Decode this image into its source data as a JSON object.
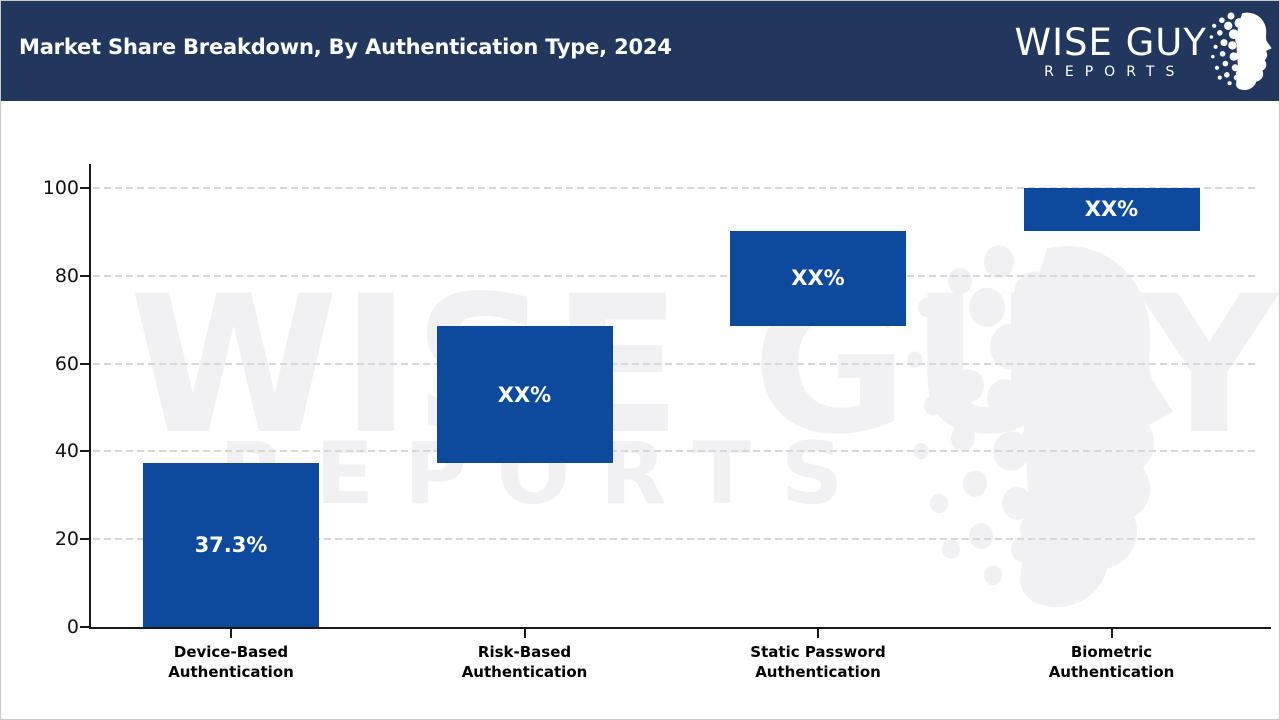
{
  "header": {
    "title": "Market Share Breakdown, By Authentication Type, 2024",
    "logo": {
      "line1": "WISE GUY",
      "line2": "REPORTS"
    }
  },
  "watermark": {
    "line1": "WISE GU·Y",
    "line2": "REPORTS"
  },
  "chart_data": {
    "type": "bar",
    "subtype": "waterfall",
    "title": "Market Share Breakdown, By Authentication Type, 2024",
    "xlabel": "",
    "ylabel": "",
    "ylim": [
      0,
      100
    ],
    "yticks": [
      0,
      20,
      40,
      60,
      80,
      100
    ],
    "grid": "horizontal-dashed",
    "legend": "none",
    "bar_color": "#0d4a9e",
    "bar_label_color": "#ffffff",
    "bars": [
      {
        "category_line1": "Device-Based",
        "category_line2": "Authentication",
        "start": 0,
        "end": 37.3,
        "label": "37.3%"
      },
      {
        "category_line1": "Risk-Based",
        "category_line2": "Authentication",
        "start": 37.3,
        "end": 68.5,
        "label": "XX%"
      },
      {
        "category_line1": "Static Password",
        "category_line2": "Authentication",
        "start": 68.5,
        "end": 90.3,
        "label": "XX%"
      },
      {
        "category_line1": "Biometric",
        "category_line2": "Authentication",
        "start": 90.3,
        "end": 100,
        "label": "XX%"
      }
    ]
  },
  "colors": {
    "header_bg": "#21375e",
    "bar": "#0d4a9e",
    "grid": "#d8d8d8",
    "axis": "#1a1a1a",
    "watermark": "#f1f1f3",
    "page_border": "#c9c9c9"
  }
}
